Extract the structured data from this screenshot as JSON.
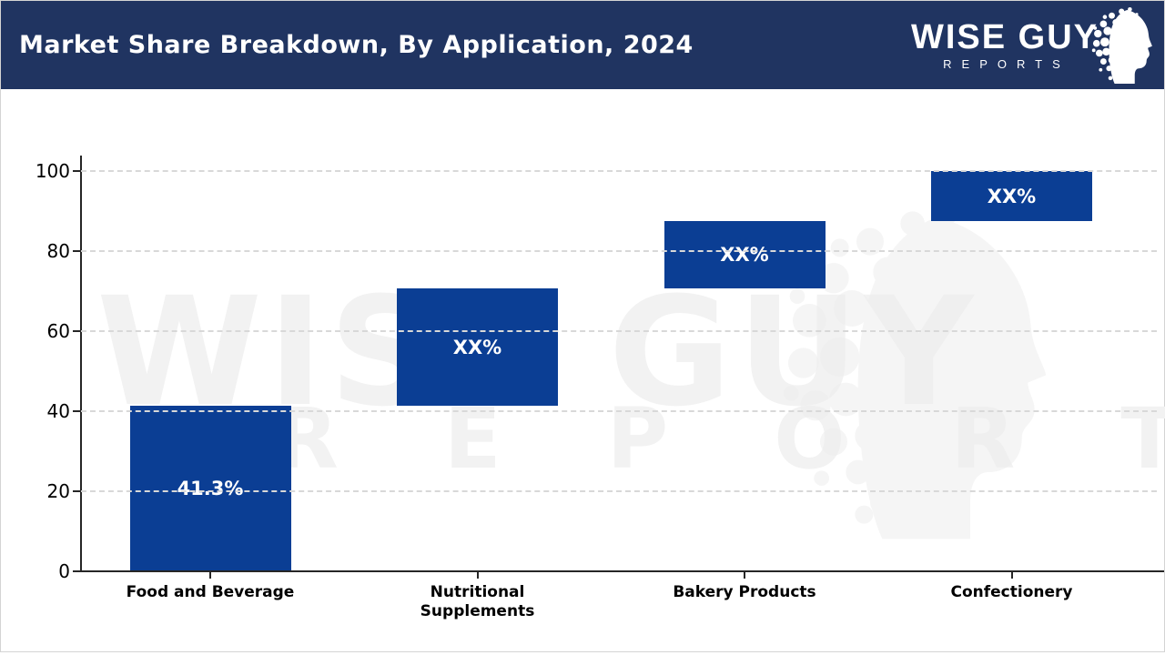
{
  "header": {
    "title": "Market Share Breakdown, By Application, 2024",
    "logo": {
      "brand_line1": "WISE GUY",
      "brand_line2": "REPORTS"
    }
  },
  "watermark": {
    "line1": "WISE GUY",
    "line2": "R E P O R T S"
  },
  "colors": {
    "header_bg": "#203461",
    "bar": "#0b3e94",
    "axis": "#262626",
    "grid": "#d8d8d8",
    "bar_label": "#ffffff",
    "card_border": "#d4d4d4"
  },
  "chart_data": {
    "type": "bar",
    "subtype": "waterfall",
    "title": "Market Share Breakdown, By Application, 2024",
    "categories": [
      "Food and Beverage",
      "Nutritional\nSupplements",
      "Bakery Products",
      "Confectionery"
    ],
    "series": [
      {
        "name": "Market share (%)",
        "segments": [
          {
            "category": "Food and Beverage",
            "start": 0,
            "end": 41.3,
            "label": "41.3%"
          },
          {
            "category": "Nutritional Supplements",
            "start": 41.3,
            "end": 70.7,
            "label": "XX%"
          },
          {
            "category": "Bakery Products",
            "start": 70.7,
            "end": 87.5,
            "label": "XX%"
          },
          {
            "category": "Confectionery",
            "start": 87.5,
            "end": 100,
            "label": "XX%"
          }
        ]
      }
    ],
    "xlabel": "",
    "ylabel": "",
    "yticks": [
      0,
      20,
      40,
      60,
      80,
      100
    ],
    "ylim": [
      0,
      105
    ],
    "grid": "horizontal-dashed",
    "legend": "none"
  }
}
